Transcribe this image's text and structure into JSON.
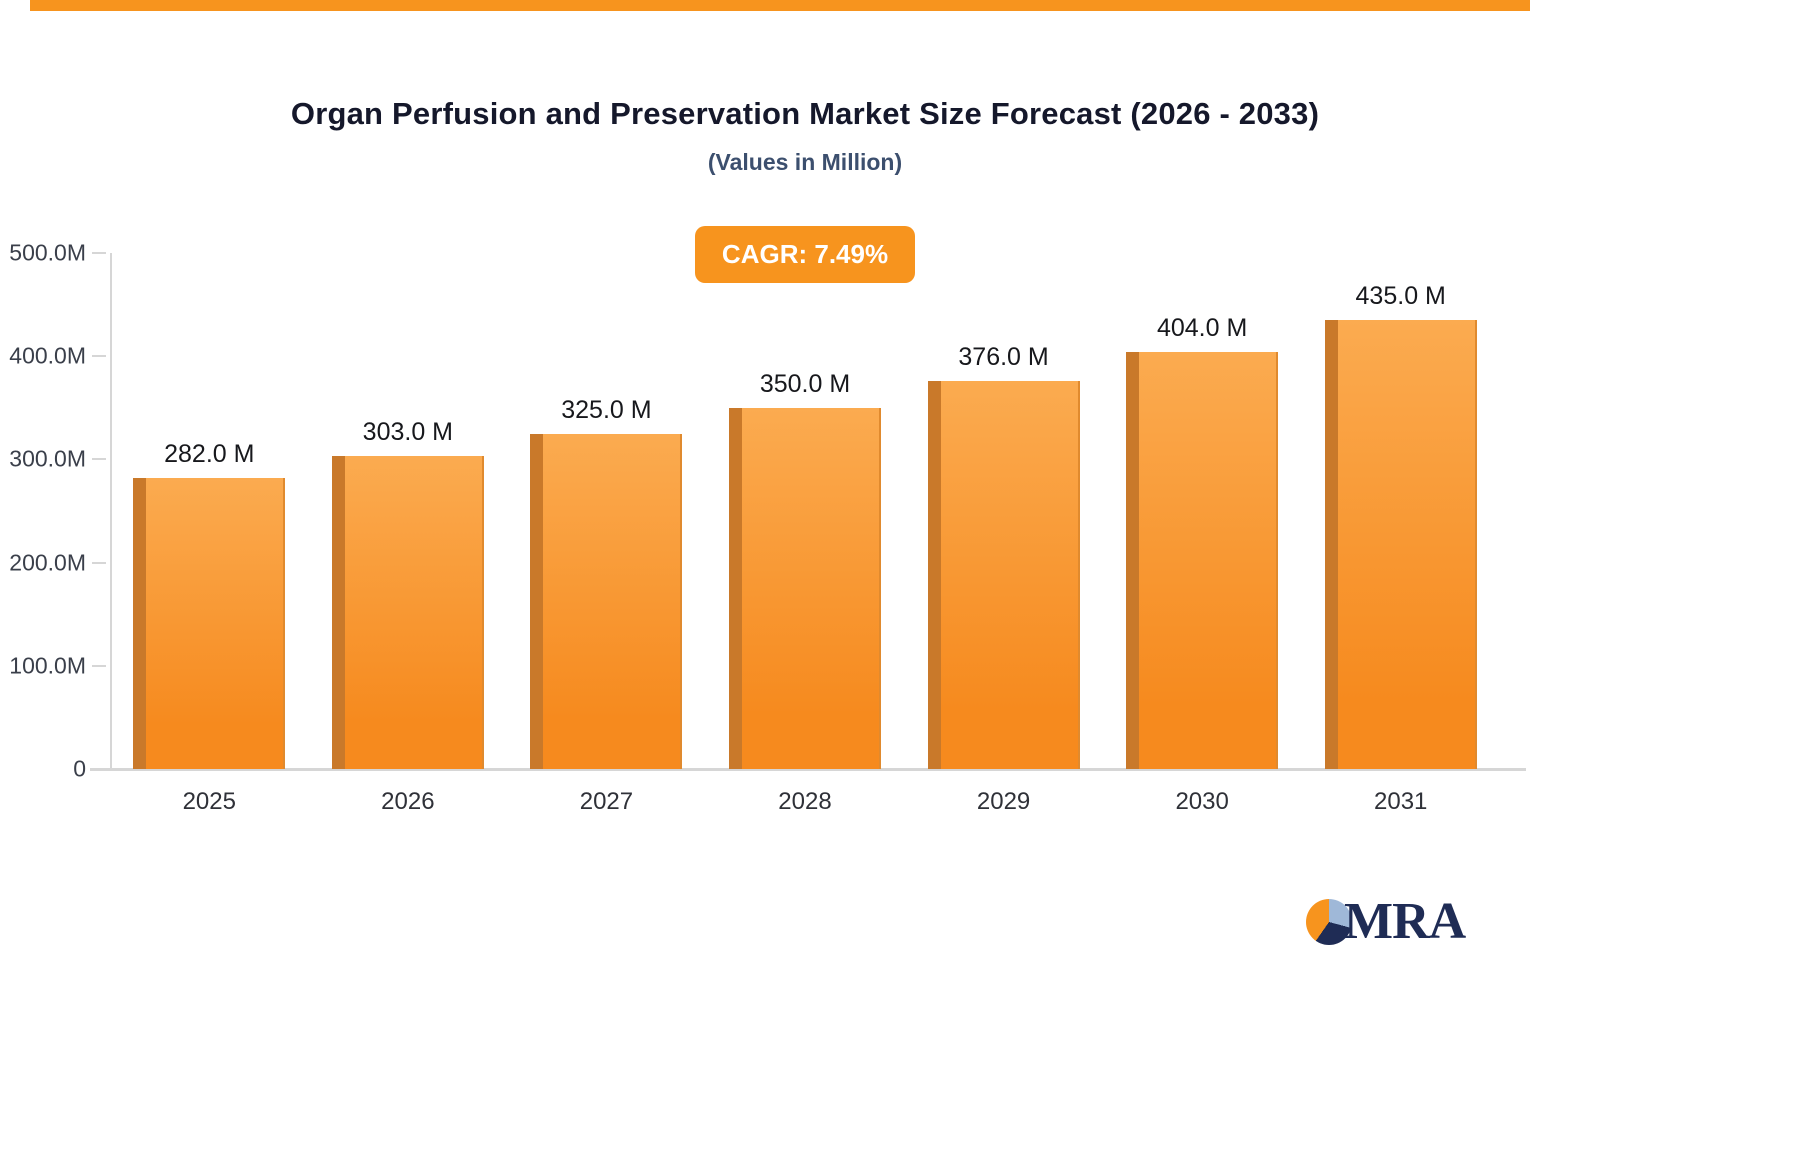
{
  "chart_data": {
    "type": "bar",
    "title": "Organ Perfusion and Preservation Market Size Forecast (2026 - 2033)",
    "subtitle": "(Values in Million)",
    "annotation_badge": "CAGR: 7.49%",
    "categories": [
      "2025",
      "2026",
      "2027",
      "2028",
      "2029",
      "2030",
      "2031"
    ],
    "values": [
      282.0,
      303.0,
      325.0,
      350.0,
      376.0,
      404.0,
      435.0
    ],
    "value_labels": [
      "282.0 M",
      "303.0 M",
      "325.0 M",
      "350.0 M",
      "376.0 M",
      "404.0 M",
      "435.0 M"
    ],
    "xlabel": "",
    "ylabel": "",
    "ylim": [
      0,
      500
    ],
    "ytick_values": [
      0,
      100,
      200,
      300,
      400,
      500
    ],
    "ytick_labels": [
      "0",
      "100.0M",
      "200.0M",
      "300.0M",
      "400.0M",
      "500.0M"
    ],
    "grid": false,
    "legend": false
  },
  "branding": {
    "logo_text": "MRA"
  },
  "colors": {
    "accent_orange": "#F7941E",
    "bar_top": "#FBAB50",
    "bar_bottom": "#F68A1E",
    "bar_side": "#C9792A",
    "bar_side_light": "#E08A2E",
    "title_text": "#15182B",
    "subtitle_text": "#3C4F6E",
    "axis_text": "#3A3F4A",
    "axis_line": "#D6D6D6",
    "logo_navy": "#1F2C55",
    "logo_lightblue": "#9FB8D8"
  }
}
